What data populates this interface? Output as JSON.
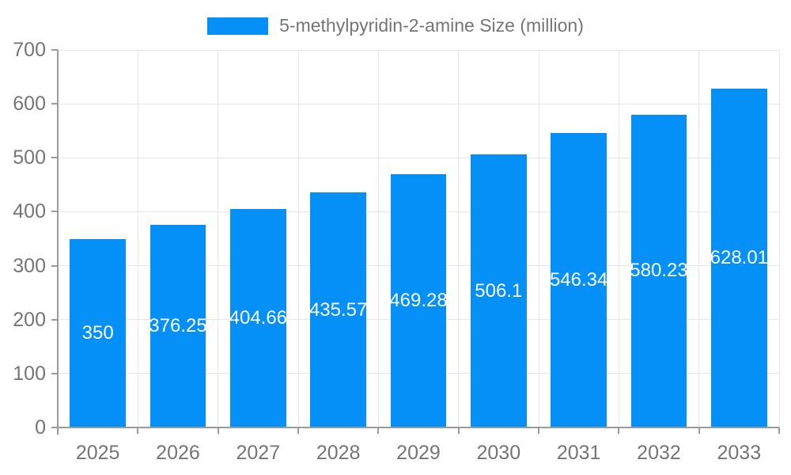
{
  "chart_data": {
    "type": "bar",
    "title": "5-methylpyridin-2-amine Size (million)",
    "categories": [
      "2025",
      "2026",
      "2027",
      "2028",
      "2029",
      "2030",
      "2031",
      "2032",
      "2033"
    ],
    "values": [
      350,
      376.25,
      404.66,
      435.57,
      469.28,
      506.1,
      546.34,
      580.23,
      628.01
    ],
    "value_labels": [
      "350",
      "376.25",
      "404.66",
      "435.57",
      "469.28",
      "506.1",
      "546.34",
      "580.23",
      "628.01"
    ],
    "yticks": [
      0,
      100,
      200,
      300,
      400,
      500,
      600,
      700
    ],
    "ylim": [
      0,
      700
    ],
    "xlabel": "",
    "ylabel": "",
    "grid": true,
    "legend_position": "top-center",
    "colors": {
      "bar": "#0590f8",
      "grid": "#e6e6e6",
      "axis": "#9a9a9a",
      "tick_text": "#757575",
      "value_label": "#ffffff",
      "background": "#ffffff"
    }
  }
}
